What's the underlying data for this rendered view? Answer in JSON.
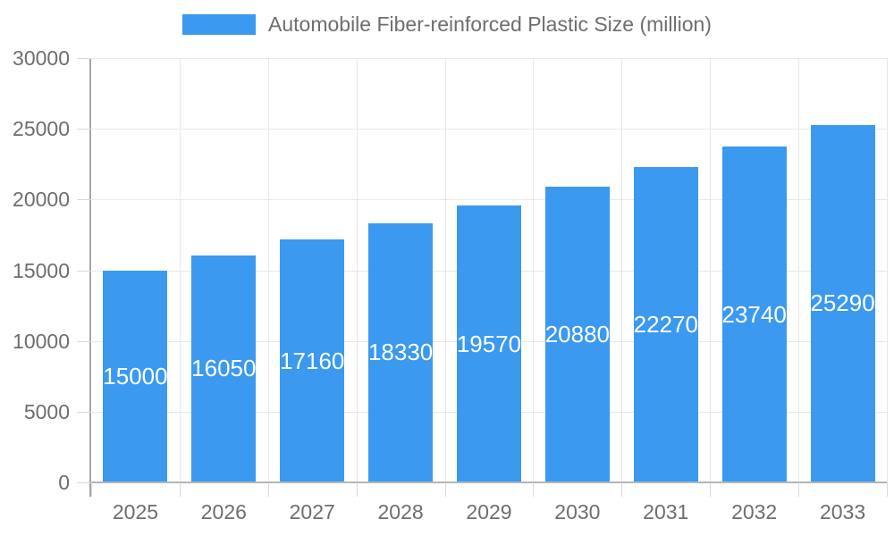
{
  "legend": {
    "label": "Automobile Fiber-reinforced Plastic Size (million)"
  },
  "colors": {
    "bar": "#3b99f0",
    "bar_label": "#ffffff",
    "axis_text": "#6e6e6e",
    "grid_line": "#e8e8e8",
    "axis_line": "#a6a6a6",
    "background": "#ffffff"
  },
  "chart_data": {
    "type": "bar",
    "title": "Automobile Fiber-reinforced Plastic Size (million)",
    "categories": [
      "2025",
      "2026",
      "2027",
      "2028",
      "2029",
      "2030",
      "2031",
      "2032",
      "2033"
    ],
    "values": [
      15000,
      16050,
      17160,
      18330,
      19570,
      20880,
      22270,
      23740,
      25290
    ],
    "bar_value_labels": [
      "15000",
      "16050",
      "17160",
      "18330",
      "19570",
      "20880",
      "22270",
      "23740",
      "25290"
    ],
    "xlabel": "",
    "ylabel": "",
    "ylim": [
      0,
      30000
    ],
    "yticks": [
      0,
      5000,
      10000,
      15000,
      20000,
      25000,
      30000
    ],
    "ytick_labels": [
      "0",
      "5000",
      "10000",
      "15000",
      "20000",
      "25000",
      "30000"
    ],
    "grid": true,
    "legend_position": "top",
    "value_labels_position": "center-inside",
    "value_labels_color": "#ffffff"
  }
}
